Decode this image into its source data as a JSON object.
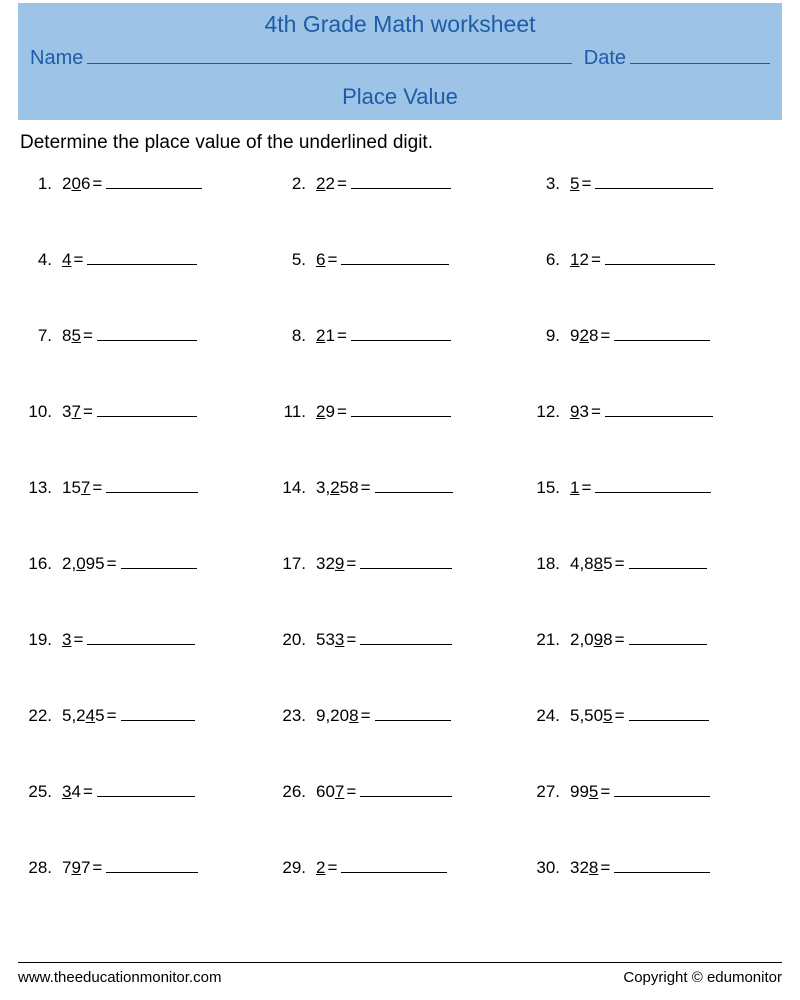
{
  "header": {
    "title": "4th Grade Math worksheet",
    "name_label": "Name",
    "date_label": "Date",
    "subtitle": "Place Value",
    "title_color": "#1f5ca8",
    "header_bg": "#9dc3e6"
  },
  "instructions": "Determine the place value of the underlined digit.",
  "problems": [
    {
      "n": "1.",
      "segs": [
        "2",
        "0",
        "6"
      ],
      "u": 1,
      "blank_w": 96
    },
    {
      "n": "2.",
      "segs": [
        "2",
        "2"
      ],
      "u": 0,
      "blank_w": 100
    },
    {
      "n": "3.",
      "segs": [
        "5"
      ],
      "u": 0,
      "blank_w": 118
    },
    {
      "n": "4.",
      "segs": [
        "4"
      ],
      "u": 0,
      "blank_w": 110
    },
    {
      "n": "5.",
      "segs": [
        "6"
      ],
      "u": 0,
      "blank_w": 108
    },
    {
      "n": "6.",
      "segs": [
        "1",
        "2"
      ],
      "u": 0,
      "blank_w": 110
    },
    {
      "n": "7.",
      "segs": [
        "8",
        "5"
      ],
      "u": 1,
      "blank_w": 100
    },
    {
      "n": "8.",
      "segs": [
        "2",
        "1"
      ],
      "u": 0,
      "blank_w": 100
    },
    {
      "n": "9.",
      "segs": [
        "9",
        "2",
        "8"
      ],
      "u": 1,
      "blank_w": 96
    },
    {
      "n": "10.",
      "segs": [
        "3",
        "7"
      ],
      "u": 1,
      "blank_w": 100
    },
    {
      "n": "11.",
      "segs": [
        "2",
        "9"
      ],
      "u": 0,
      "blank_w": 100
    },
    {
      "n": "12.",
      "segs": [
        "9",
        "3"
      ],
      "u": 0,
      "blank_w": 108
    },
    {
      "n": "13.",
      "segs": [
        "15",
        "7"
      ],
      "u": 1,
      "blank_w": 92
    },
    {
      "n": "14.",
      "segs": [
        "3,",
        "2",
        "58"
      ],
      "u": 1,
      "blank_w": 78
    },
    {
      "n": "15.",
      "segs": [
        "1"
      ],
      "u": 0,
      "blank_w": 116
    },
    {
      "n": "16.",
      "segs": [
        "2,",
        "0",
        "95"
      ],
      "u": 1,
      "blank_w": 76
    },
    {
      "n": "17.",
      "segs": [
        "32",
        "9"
      ],
      "u": 1,
      "blank_w": 92
    },
    {
      "n": "18.",
      "segs": [
        "4,8",
        "8",
        "5"
      ],
      "u": 1,
      "blank_w": 78
    },
    {
      "n": "19.",
      "segs": [
        "3"
      ],
      "u": 0,
      "blank_w": 108
    },
    {
      "n": "20.",
      "segs": [
        "53",
        "3"
      ],
      "u": 1,
      "blank_w": 92
    },
    {
      "n": "21.",
      "segs": [
        "2,0",
        "9",
        "8"
      ],
      "u": 1,
      "blank_w": 78
    },
    {
      "n": "22.",
      "segs": [
        "5,2",
        "4",
        "5"
      ],
      "u": 1,
      "blank_w": 74
    },
    {
      "n": "23.",
      "segs": [
        "9,20",
        "8"
      ],
      "u": 1,
      "blank_w": 76
    },
    {
      "n": "24.",
      "segs": [
        "5,50",
        "5"
      ],
      "u": 1,
      "blank_w": 80
    },
    {
      "n": "25.",
      "segs": [
        "3",
        "4"
      ],
      "u": 0,
      "blank_w": 98
    },
    {
      "n": "26.",
      "segs": [
        "60",
        "7"
      ],
      "u": 1,
      "blank_w": 92
    },
    {
      "n": "27.",
      "segs": [
        "99",
        "5"
      ],
      "u": 1,
      "blank_w": 96
    },
    {
      "n": "28.",
      "segs": [
        "7",
        "9",
        "7"
      ],
      "u": 1,
      "blank_w": 92
    },
    {
      "n": "29.",
      "segs": [
        "2"
      ],
      "u": 0,
      "blank_w": 106
    },
    {
      "n": "30.",
      "segs": [
        "32",
        "8"
      ],
      "u": 1,
      "blank_w": 96
    }
  ],
  "footer": {
    "left": "www.theeducationmonitor.com",
    "right": "Copyright © edumonitor"
  },
  "style": {
    "body_font": "Arial",
    "font_size_body": 17,
    "font_size_title": 23,
    "font_size_subtitle": 22,
    "font_size_instructions": 19,
    "grid_cols": 3,
    "row_gap": 54,
    "text_color": "#000000",
    "blank_border": "#000000"
  }
}
